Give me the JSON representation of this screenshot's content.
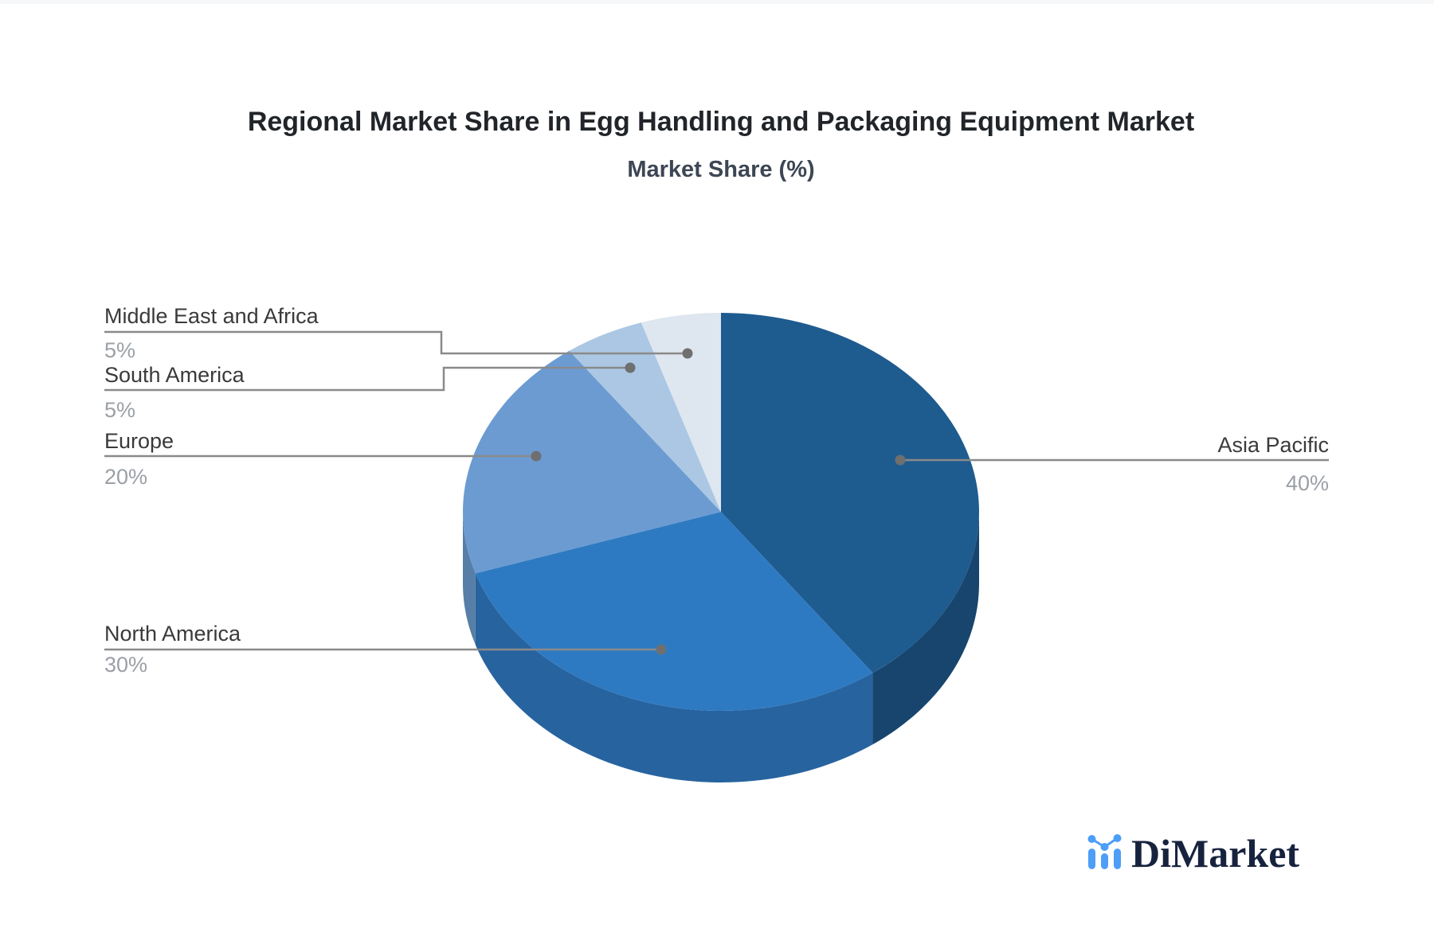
{
  "page": {
    "background": "#ffffff",
    "top_strip_color": "#f5f7f8"
  },
  "header": {
    "title": "Regional Market Share in Egg Handling and Packaging Equipment Market",
    "subtitle": "Market Share (%)"
  },
  "chart_data": {
    "type": "pie",
    "style": "3d",
    "title": "Regional Market Share in Egg Handling and Packaging Equipment Market",
    "subtitle": "Market Share (%)",
    "unit": "%",
    "direction": "clockwise",
    "start_angle_deg": 0,
    "legend_position": "callout-labels",
    "labels": [
      "Asia Pacific",
      "North America",
      "Europe",
      "South America",
      "Middle East and Africa"
    ],
    "values": [
      40,
      30,
      20,
      5,
      5
    ],
    "display_values": [
      "40%",
      "30%",
      "20%",
      "5%",
      "5%"
    ],
    "colors": [
      "#1E5B8F",
      "#2E7AC2",
      "#6C9BD2",
      "#ABC7E3",
      "#DEE6F0"
    ],
    "side_colors": [
      "#17456E",
      "#27639F",
      "#567EA6",
      "#8FAFD0",
      "#C4D2E2"
    ],
    "label_text_color": "#3A3A3A",
    "value_text_color": "#9BA0A6",
    "leader_line_color": "#8A8A8A",
    "leader_dot_color": "#6F6F6F"
  },
  "branding": {
    "logo_text": "DiMarket",
    "logo_text_color": "#17233E",
    "logo_icon": "bar-line-chart-icon",
    "logo_icon_color": "#4D9EF7"
  }
}
